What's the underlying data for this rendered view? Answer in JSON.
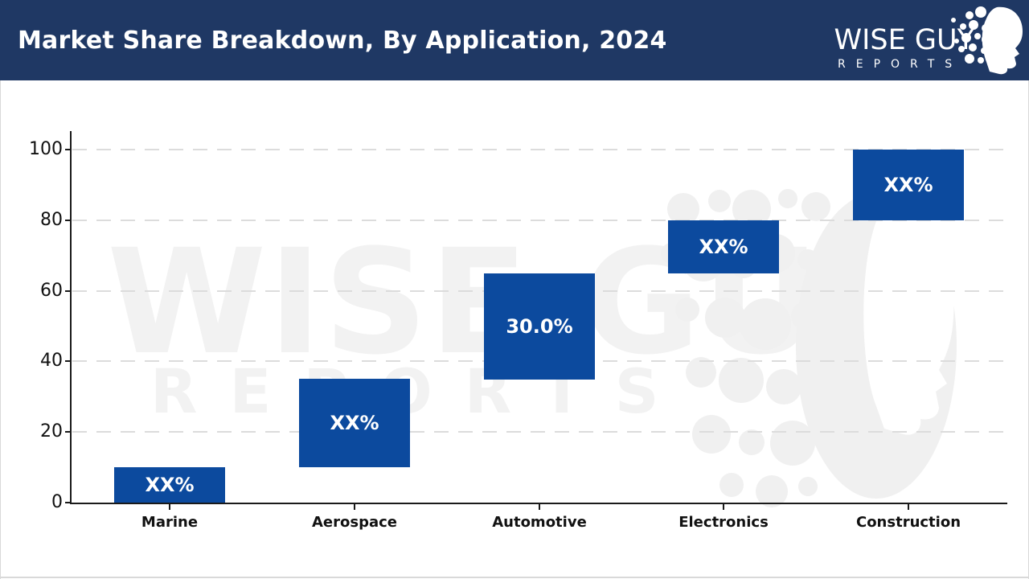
{
  "header": {
    "title": "Market Share Breakdown, By Application, 2024",
    "logo": {
      "line1": "WISE GUY",
      "line2": "REPORTS"
    }
  },
  "watermark": {
    "line1": "WISE GUY",
    "line2": "REPORTS"
  },
  "chart_data": {
    "type": "bar",
    "subtype": "floating-waterfall",
    "title": "Market Share Breakdown, By Application, 2024",
    "categories": [
      "Marine",
      "Aerospace",
      "Automotive",
      "Electronics",
      "Construction"
    ],
    "segments": [
      {
        "category": "Marine",
        "start": 0,
        "end": 10,
        "value": 10,
        "label": "XX%"
      },
      {
        "category": "Aerospace",
        "start": 10,
        "end": 35,
        "value": 25,
        "label": "XX%"
      },
      {
        "category": "Automotive",
        "start": 35,
        "end": 65,
        "value": 30,
        "label": "30.0%"
      },
      {
        "category": "Electronics",
        "start": 65,
        "end": 80,
        "value": 15,
        "label": "XX%"
      },
      {
        "category": "Construction",
        "start": 80,
        "end": 100,
        "value": 20,
        "label": "XX%"
      }
    ],
    "yticks": [
      0,
      20,
      40,
      60,
      80,
      100
    ],
    "ylim": [
      0,
      105
    ],
    "xlabel": "",
    "ylabel": "",
    "grid": "horizontal-dashed",
    "legend": "none"
  },
  "colors": {
    "header_bg": "#1f3864",
    "bar": "#0c4a9e",
    "grid": "#dcdcdc",
    "axis": "#1a1a1a",
    "watermark": "#f2f2f2"
  }
}
